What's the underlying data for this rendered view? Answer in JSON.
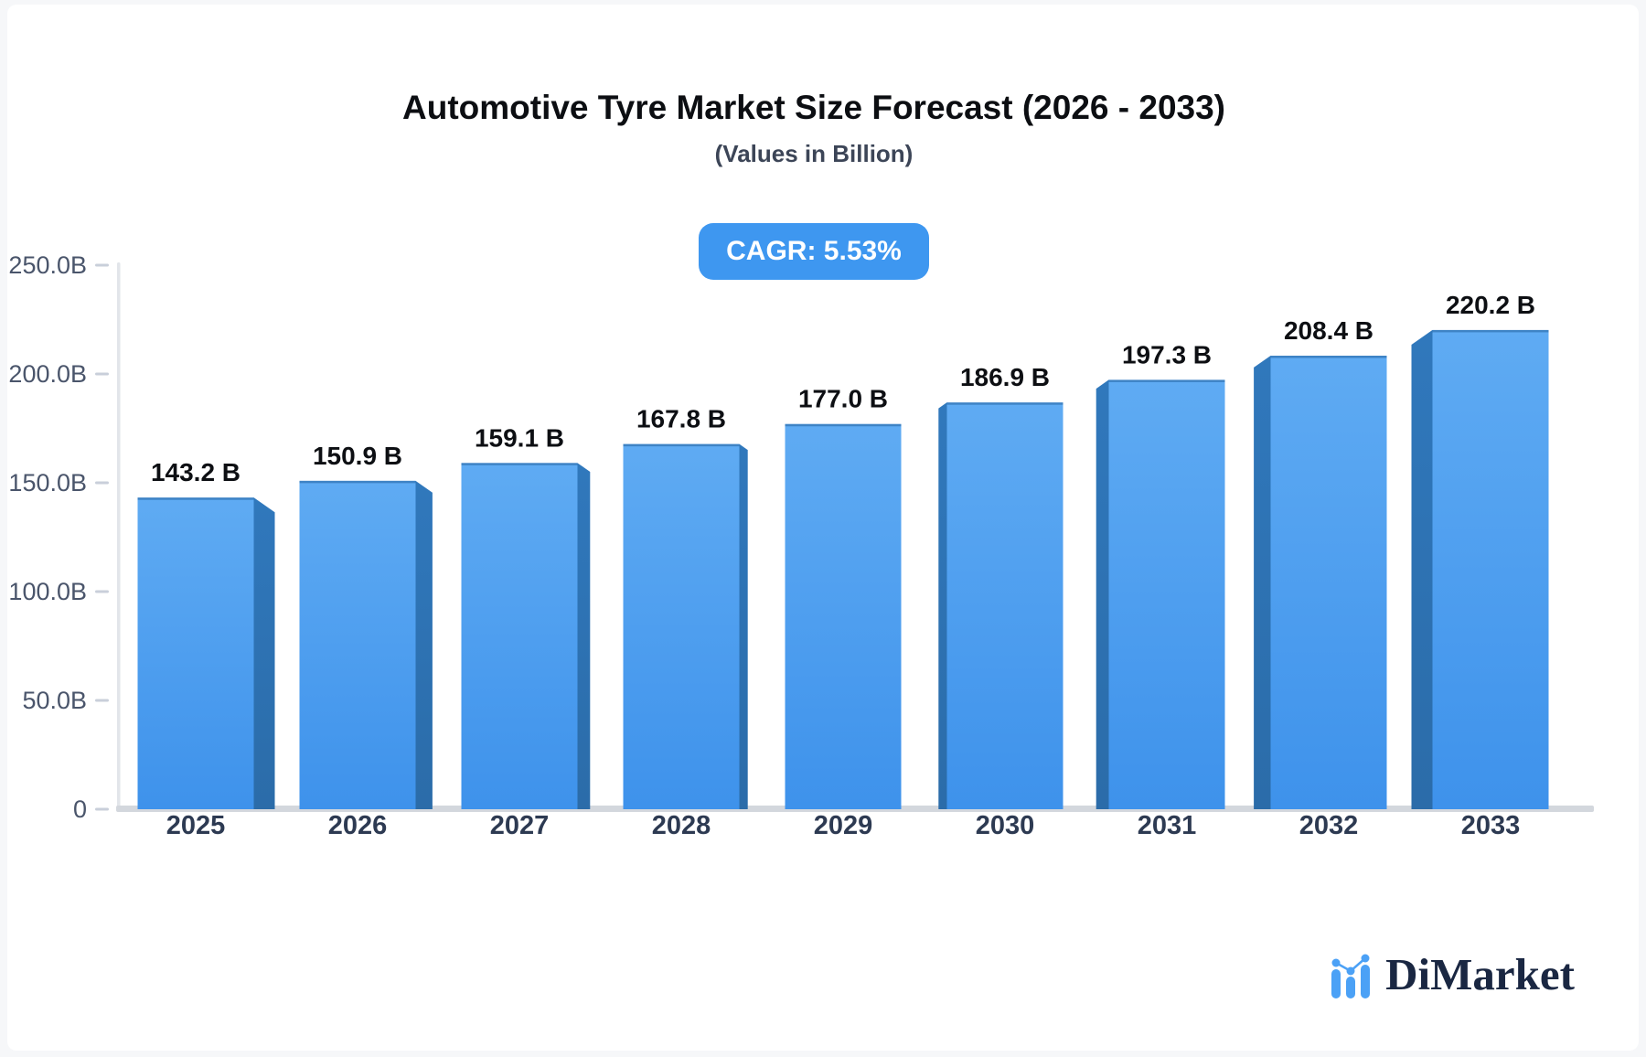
{
  "page": {
    "background": "#f6f7f9",
    "card_background": "#ffffff"
  },
  "header": {
    "title": "Automotive Tyre Market Size Forecast (2026 - 2033)",
    "subtitle": "(Values in Billion)",
    "cagr_badge": "CAGR: 5.53%",
    "badge_color": "#3e97f0"
  },
  "chart_data": {
    "type": "bar",
    "title": "Automotive Tyre Market Size Forecast (2026 - 2033)",
    "subtitle": "(Values in Billion)",
    "cagr": "5.53%",
    "categories": [
      "2025",
      "2026",
      "2027",
      "2028",
      "2029",
      "2030",
      "2031",
      "2032",
      "2033"
    ],
    "values": [
      143.2,
      150.9,
      159.1,
      167.8,
      177.0,
      186.9,
      197.3,
      208.4,
      220.2
    ],
    "value_labels": [
      "143.2 B",
      "150.9 B",
      "159.1 B",
      "167.8 B",
      "177.0 B",
      "186.9 B",
      "197.3 B",
      "208.4 B",
      "220.2 B"
    ],
    "ylim": [
      0,
      250
    ],
    "yticks": {
      "values": [
        0,
        50,
        100,
        150,
        200,
        250
      ],
      "labels": [
        "0",
        "50.0B",
        "100.0B",
        "150.0B",
        "200.0B",
        "250.0B"
      ]
    },
    "grid": false,
    "legend": false,
    "style_3d": true,
    "colors": {
      "bar_face_top": "#5fabf3",
      "bar_face_bottom": "#3e92eb",
      "bar_side_top": "#3078bc",
      "bar_side_bottom": "#2b6ca9",
      "axis_line": "#e2e5ea",
      "baseline": "#d3d7dd",
      "tick": "#c9cfda",
      "y_label": "#4a556b",
      "x_label": "#2d3a52",
      "value_label": "#0d0f13"
    }
  },
  "branding": {
    "logo_text": "DiMarket",
    "logo_icon": "bar-line-chart-icon",
    "logo_icon_color": "#4ba1f6",
    "logo_text_color": "#1a2742"
  }
}
